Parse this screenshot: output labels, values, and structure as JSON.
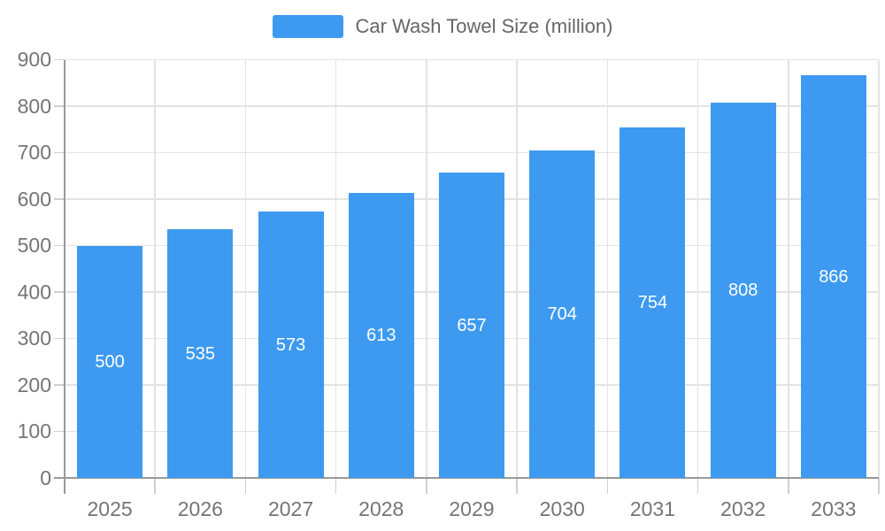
{
  "chart_data": {
    "type": "bar",
    "title": "Car Wash Towel Size (million)",
    "categories": [
      "2025",
      "2026",
      "2027",
      "2028",
      "2029",
      "2030",
      "2031",
      "2032",
      "2033"
    ],
    "values": [
      500,
      535,
      573,
      613,
      657,
      704,
      754,
      808,
      866
    ],
    "xlabel": "",
    "ylabel": "",
    "ylim": [
      0,
      900
    ],
    "y_tick_step": 100,
    "y_tick_labels": [
      "0",
      "100",
      "200",
      "300",
      "400",
      "500",
      "600",
      "700",
      "800",
      "900"
    ],
    "grid": true,
    "legend_position": "top-center",
    "bar_label_position": "inside-center",
    "colors": {
      "bar": "#3D9AF0",
      "bar_label": "#FFFFFF",
      "legend_text": "#666666",
      "axis_label": "#757575",
      "axis_line": "#999999",
      "gridline": "#E3E3E3",
      "tick": "#CFCFCF",
      "background": "#FFFFFF"
    }
  }
}
